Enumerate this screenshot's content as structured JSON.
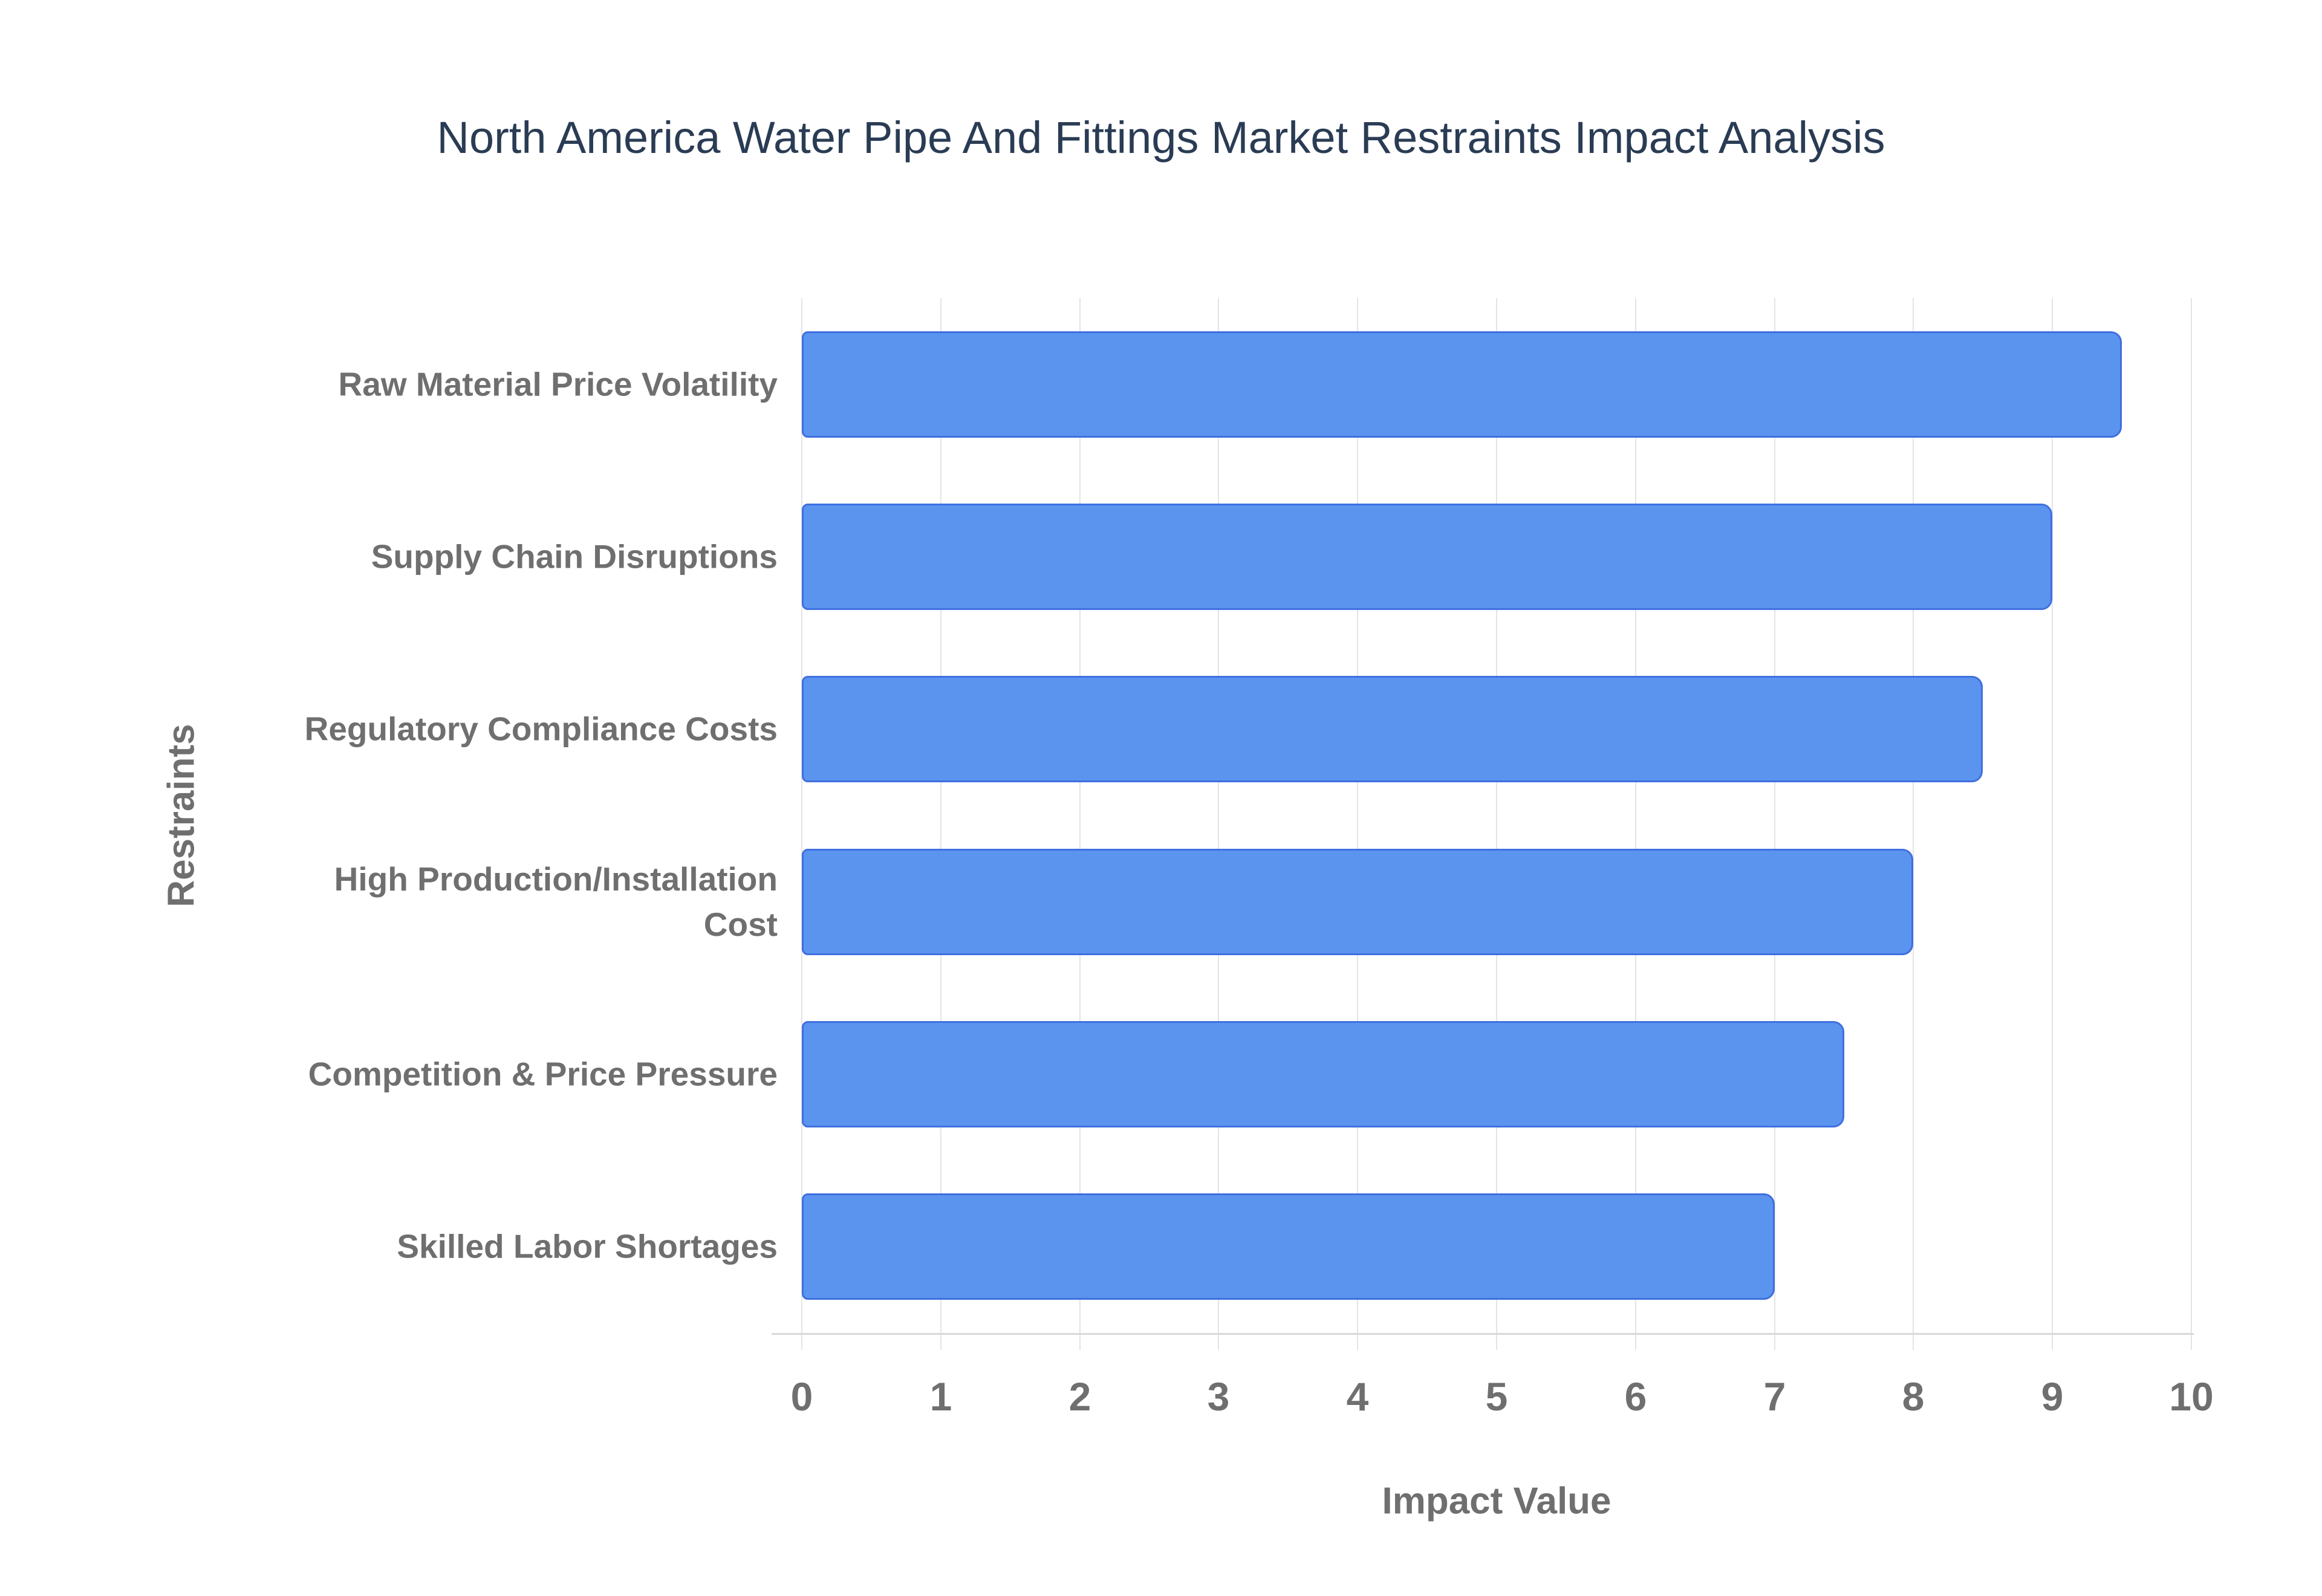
{
  "chart_data": {
    "type": "bar",
    "orientation": "horizontal",
    "title": "North America Water Pipe And Fittings Market Restraints Impact Analysis",
    "xlabel": "Impact Value",
    "ylabel": "Restraints",
    "categories": [
      "Raw Material Price Volatility",
      "Supply Chain Disruptions",
      "Regulatory Compliance Costs",
      "High Production/Installation Cost",
      "Competition & Price Pressure",
      "Skilled Labor Shortages"
    ],
    "category_wrap": {
      "3": [
        "High Production/Installation",
        "Cost"
      ]
    },
    "values": [
      9.5,
      9,
      8.5,
      8,
      7.5,
      7
    ],
    "xlim": [
      0,
      10
    ],
    "xticks": [
      0,
      1,
      2,
      3,
      4,
      5,
      6,
      7,
      8,
      9,
      10
    ],
    "grid": true,
    "legend": false,
    "colors": {
      "bar_fill": "#5b94ef",
      "bar_border": "#3f6fdf",
      "gridline": "#e4e4e4",
      "axis_line": "#d9d9d9",
      "title_text": "#2a3c54",
      "label_text": "#6f6f6f"
    }
  }
}
